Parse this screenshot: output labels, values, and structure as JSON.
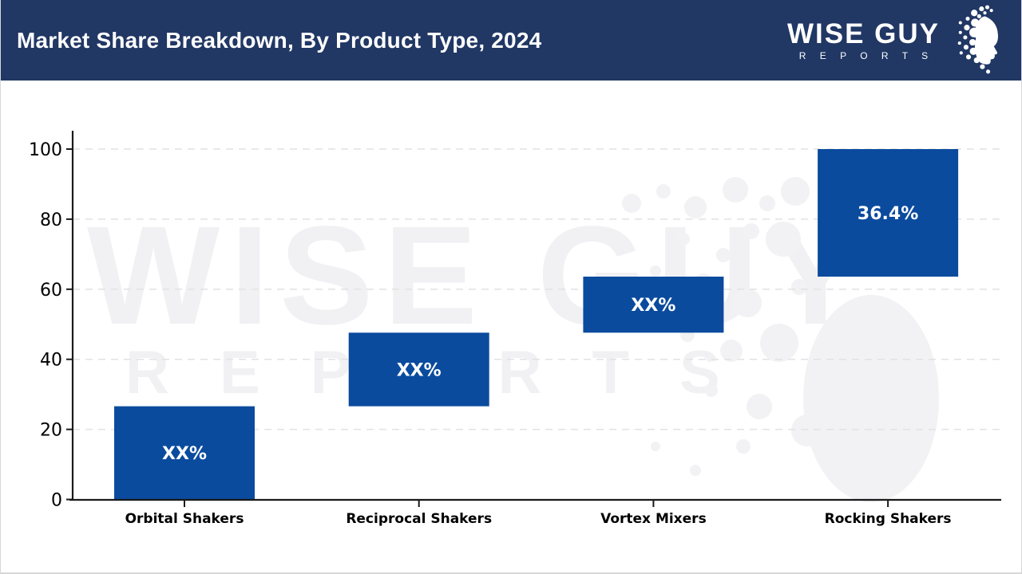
{
  "header": {
    "title": "Market Share Breakdown, By Product Type, 2024",
    "bg_color": "#213764",
    "logo": {
      "brand": "WISE GUY",
      "sub": "R E P O R T S"
    }
  },
  "watermark": {
    "line1": "WISE GUY",
    "line2": "R E P O R T S"
  },
  "chart_data": {
    "type": "bar",
    "variant": "waterfall",
    "title": "Market Share Breakdown, By Product Type, 2024",
    "xlabel": "",
    "ylabel": "",
    "ylim": [
      0,
      100
    ],
    "yticks": [
      0,
      20,
      40,
      60,
      80,
      100
    ],
    "grid": "horizontal-dashed",
    "legend": "none",
    "categories": [
      "Orbital Shakers",
      "Reciprocal Shakers",
      "Vortex Mixers",
      "Rocking Shakers"
    ],
    "segments": [
      {
        "category": "Orbital Shakers",
        "start": 0,
        "end": 26.6,
        "value": 26.6,
        "label": "XX%"
      },
      {
        "category": "Reciprocal Shakers",
        "start": 26.6,
        "end": 47.6,
        "value": 21.0,
        "label": "XX%"
      },
      {
        "category": "Vortex Mixers",
        "start": 47.6,
        "end": 63.6,
        "value": 16.0,
        "label": "XX%"
      },
      {
        "category": "Rocking Shakers",
        "start": 63.6,
        "end": 100,
        "value": 36.4,
        "label": "36.4%"
      }
    ],
    "bar_color": "#0a4b9e",
    "bar_label_color": "#ffffff",
    "axis_color": "#1a1a1a",
    "tick_label_color": "#000000",
    "grid_color": "#e2e2e2"
  }
}
